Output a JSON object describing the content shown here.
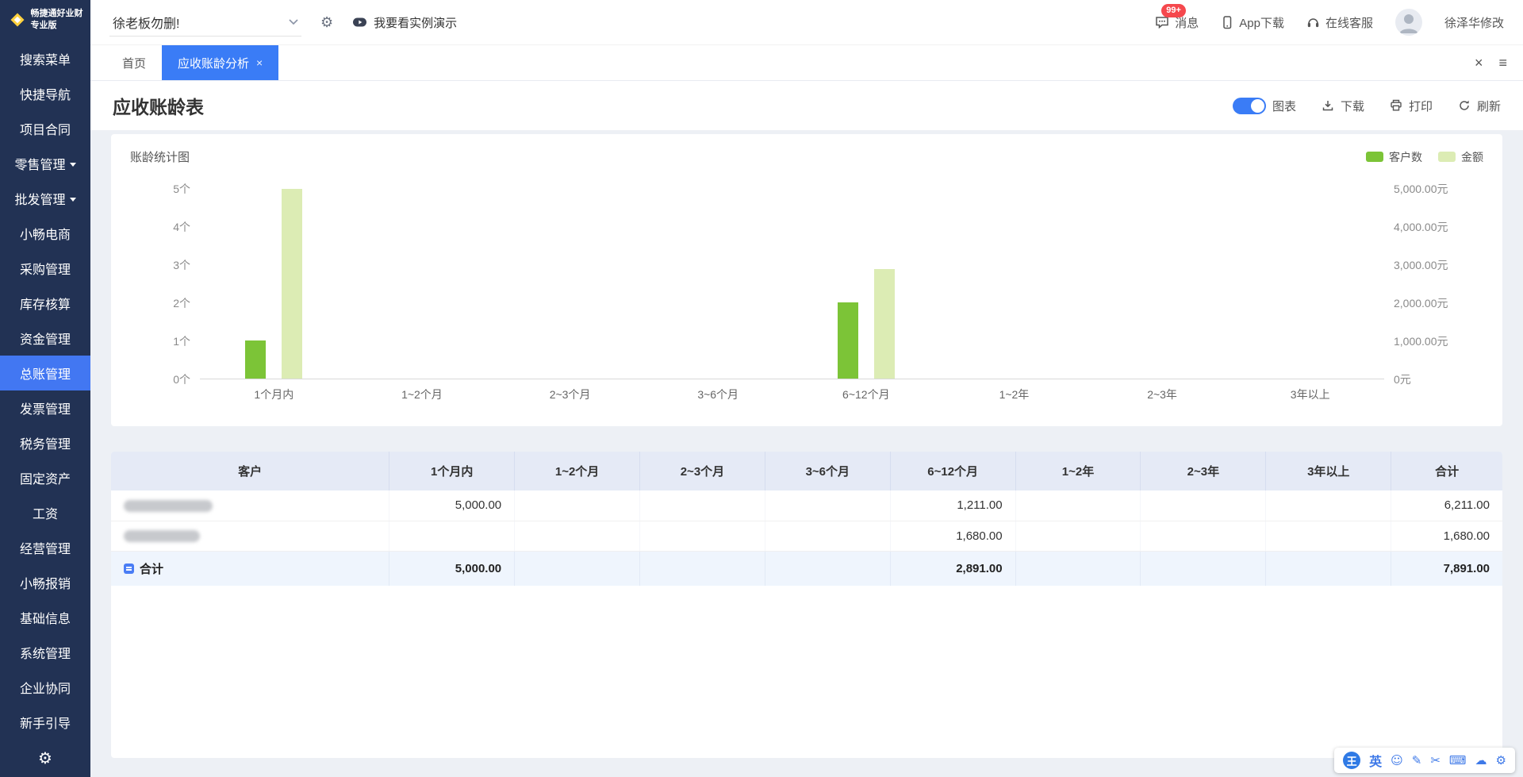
{
  "colors": {
    "accent": "#3a7cf6",
    "sidebar": "#223254",
    "green_dark": "#7cc437",
    "green_light": "#dcecb4"
  },
  "sidebar": {
    "logo_title": "畅捷通好业财",
    "logo_subtitle": "专业版",
    "items": [
      {
        "label": "搜索菜单"
      },
      {
        "label": "快捷导航"
      },
      {
        "label": "项目合同"
      },
      {
        "label": "零售管理",
        "arrow": true
      },
      {
        "label": "批发管理",
        "arrow": true
      },
      {
        "label": "小畅电商"
      },
      {
        "label": "采购管理"
      },
      {
        "label": "库存核算"
      },
      {
        "label": "资金管理"
      },
      {
        "label": "总账管理",
        "active": true
      },
      {
        "label": "发票管理"
      },
      {
        "label": "税务管理"
      },
      {
        "label": "固定资产"
      },
      {
        "label": "工资"
      },
      {
        "label": "经营管理"
      },
      {
        "label": "小畅报销"
      },
      {
        "label": "基础信息"
      },
      {
        "label": "系统管理"
      },
      {
        "label": "企业协同"
      },
      {
        "label": "新手引导"
      }
    ]
  },
  "topbar": {
    "company_select": "徐老板勿删!",
    "demo_link": "我要看实例演示",
    "messages_label": "消息",
    "messages_badge": "99+",
    "app_download_label": "App下载",
    "support_label": "在线客服",
    "username": "徐泽华修改"
  },
  "tabbar": {
    "tabs": [
      {
        "label": "首页",
        "active": false,
        "closable": false
      },
      {
        "label": "应收账龄分析",
        "active": true,
        "closable": true
      }
    ]
  },
  "page": {
    "title": "应收账龄表",
    "tools": {
      "chart_toggle_label": "图表",
      "download_label": "下载",
      "print_label": "打印",
      "refresh_label": "刷新"
    }
  },
  "chart_data": {
    "type": "bar",
    "title": "账龄统计图",
    "categories": [
      "1个月内",
      "1~2个月",
      "2~3个月",
      "3~6个月",
      "6~12个月",
      "1~2年",
      "2~3年",
      "3年以上"
    ],
    "series": [
      {
        "name": "客户数",
        "color": "#7cc437",
        "axis": "left",
        "values": [
          1,
          0,
          0,
          0,
          2,
          0,
          0,
          0
        ]
      },
      {
        "name": "金额",
        "color": "#dcecb4",
        "axis": "right",
        "values": [
          5000,
          0,
          0,
          0,
          2891,
          0,
          0,
          0
        ]
      }
    ],
    "left_axis": {
      "max": 5,
      "ticks": [
        "5个",
        "4个",
        "3个",
        "2个",
        "1个",
        "0个"
      ]
    },
    "right_axis": {
      "max": 5000,
      "ticks": [
        "5,000.00元",
        "4,000.00元",
        "3,000.00元",
        "2,000.00元",
        "1,000.00元",
        "0元"
      ]
    },
    "legend_position": "top-right",
    "grid": false
  },
  "table": {
    "headers": [
      "客户",
      "1个月内",
      "1~2个月",
      "2~3个月",
      "3~6个月",
      "6~12个月",
      "1~2年",
      "2~3年",
      "3年以上",
      "合计"
    ],
    "rows": [
      {
        "customer_redacted": true,
        "values": [
          "5,000.00",
          "",
          "",
          "",
          "1,211.00",
          "",
          "",
          "",
          "6,211.00"
        ]
      },
      {
        "customer_redacted": true,
        "values": [
          "",
          "",
          "",
          "",
          "1,680.00",
          "",
          "",
          "",
          "1,680.00"
        ]
      }
    ],
    "total_row": {
      "label": "合计",
      "values": [
        "5,000.00",
        "",
        "",
        "",
        "2,891.00",
        "",
        "",
        "",
        "7,891.00"
      ]
    }
  },
  "ime": {
    "logo_char": "王",
    "lang": "英",
    "icons": [
      "smiley",
      "pen",
      "scissors",
      "keyboard",
      "cloud",
      "gear"
    ]
  }
}
